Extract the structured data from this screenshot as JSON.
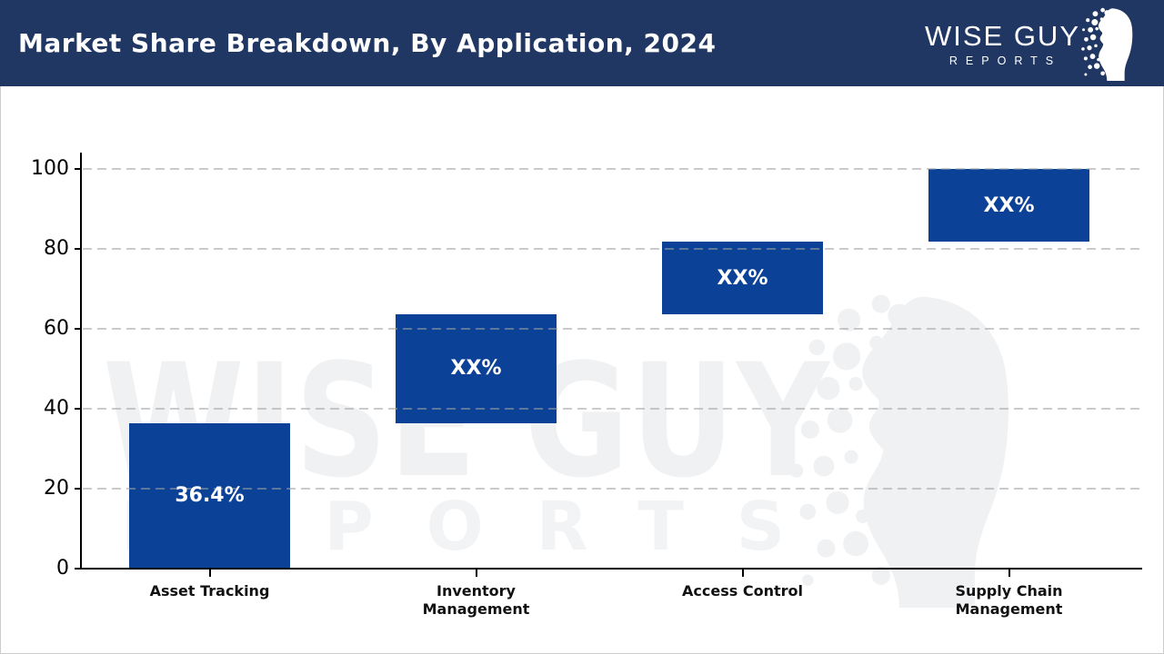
{
  "header": {
    "title": "Market Share Breakdown, By Application, 2024",
    "logo": {
      "name": "WISE GUY",
      "sub": "REPORTS"
    }
  },
  "watermark": {
    "line1": "WISE GUY",
    "line2": "REPORTS"
  },
  "chart_data": {
    "type": "bar",
    "variant": "floating-waterfall",
    "title": "Market Share Breakdown, By Application, 2024",
    "categories": [
      "Asset Tracking",
      "Inventory Management",
      "Access Control",
      "Supply Chain Management"
    ],
    "category_label_lines": [
      [
        "Asset Tracking"
      ],
      [
        "Inventory",
        "Management"
      ],
      [
        "Access Control"
      ],
      [
        "Supply Chain",
        "Management"
      ]
    ],
    "segments": [
      {
        "category": "Asset Tracking",
        "start": 0,
        "end": 36.4,
        "label": "36.4%"
      },
      {
        "category": "Inventory Management",
        "start": 36.4,
        "end": 63.6,
        "label": "XX%"
      },
      {
        "category": "Access Control",
        "start": 63.6,
        "end": 81.8,
        "label": "XX%"
      },
      {
        "category": "Supply Chain Management",
        "start": 81.8,
        "end": 100,
        "label": "XX%"
      }
    ],
    "xlabel": "",
    "ylabel": "",
    "yticks": [
      0,
      20,
      40,
      60,
      80,
      100
    ],
    "ylim": [
      0,
      105
    ],
    "grid": "horizontal dashed, drawn over bars",
    "legend": "none",
    "colors": {
      "bar": "#0b4298",
      "bar_label": "#ffffff",
      "axis": "#000000",
      "tick_label": "#000000",
      "header_bg": "#203764",
      "watermark": "#f0f1f3",
      "grid": "rgba(160,160,160,0.55)"
    }
  }
}
